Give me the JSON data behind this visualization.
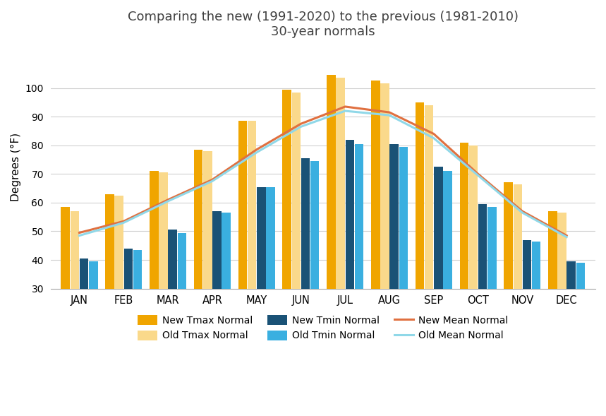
{
  "months": [
    "JAN",
    "FEB",
    "MAR",
    "APR",
    "MAY",
    "JUN",
    "JUL",
    "AUG",
    "SEP",
    "OCT",
    "NOV",
    "DEC"
  ],
  "new_tmax": [
    58.5,
    63.0,
    71.0,
    78.5,
    88.5,
    99.5,
    104.5,
    102.5,
    95.0,
    81.0,
    67.0,
    57.0
  ],
  "old_tmax": [
    57.0,
    62.5,
    70.5,
    78.0,
    88.5,
    98.5,
    103.5,
    101.5,
    94.0,
    80.0,
    66.5,
    56.5
  ],
  "new_tmin": [
    40.5,
    44.0,
    50.5,
    57.0,
    65.5,
    75.5,
    82.0,
    80.5,
    72.5,
    59.5,
    47.0,
    39.5
  ],
  "old_tmin": [
    39.5,
    43.5,
    49.5,
    56.5,
    65.5,
    74.5,
    80.5,
    79.5,
    71.0,
    58.5,
    46.5,
    39.0
  ],
  "new_mean": [
    49.5,
    53.5,
    61.0,
    68.0,
    78.5,
    87.5,
    93.5,
    91.5,
    84.0,
    70.0,
    57.0,
    48.5
  ],
  "old_mean": [
    48.5,
    53.0,
    60.5,
    67.5,
    77.5,
    86.5,
    92.0,
    90.5,
    82.5,
    69.5,
    56.5,
    48.0
  ],
  "color_new_tmax": "#F0A500",
  "color_old_tmax": "#FAD98B",
  "color_new_tmin": "#1A5276",
  "color_old_tmin": "#3AAFE0",
  "color_new_mean": "#E07040",
  "color_old_mean": "#90D8E8",
  "title_line1": "Comparing the new (1991-2020) to the previous (1981-2010)",
  "title_line2": "30-year normals",
  "ylabel": "Degrees (°F)",
  "ylim": [
    30,
    115
  ],
  "yticks": [
    30,
    40,
    50,
    60,
    70,
    80,
    90,
    100
  ],
  "background_color": "#ffffff",
  "grid_color": "#d0d0d0",
  "legend_labels": [
    "New Tmax Normal",
    "Old Tmax Normal",
    "New Tmin Normal",
    "Old Tmin Normal",
    "New Mean Normal",
    "Old Mean Normal"
  ]
}
